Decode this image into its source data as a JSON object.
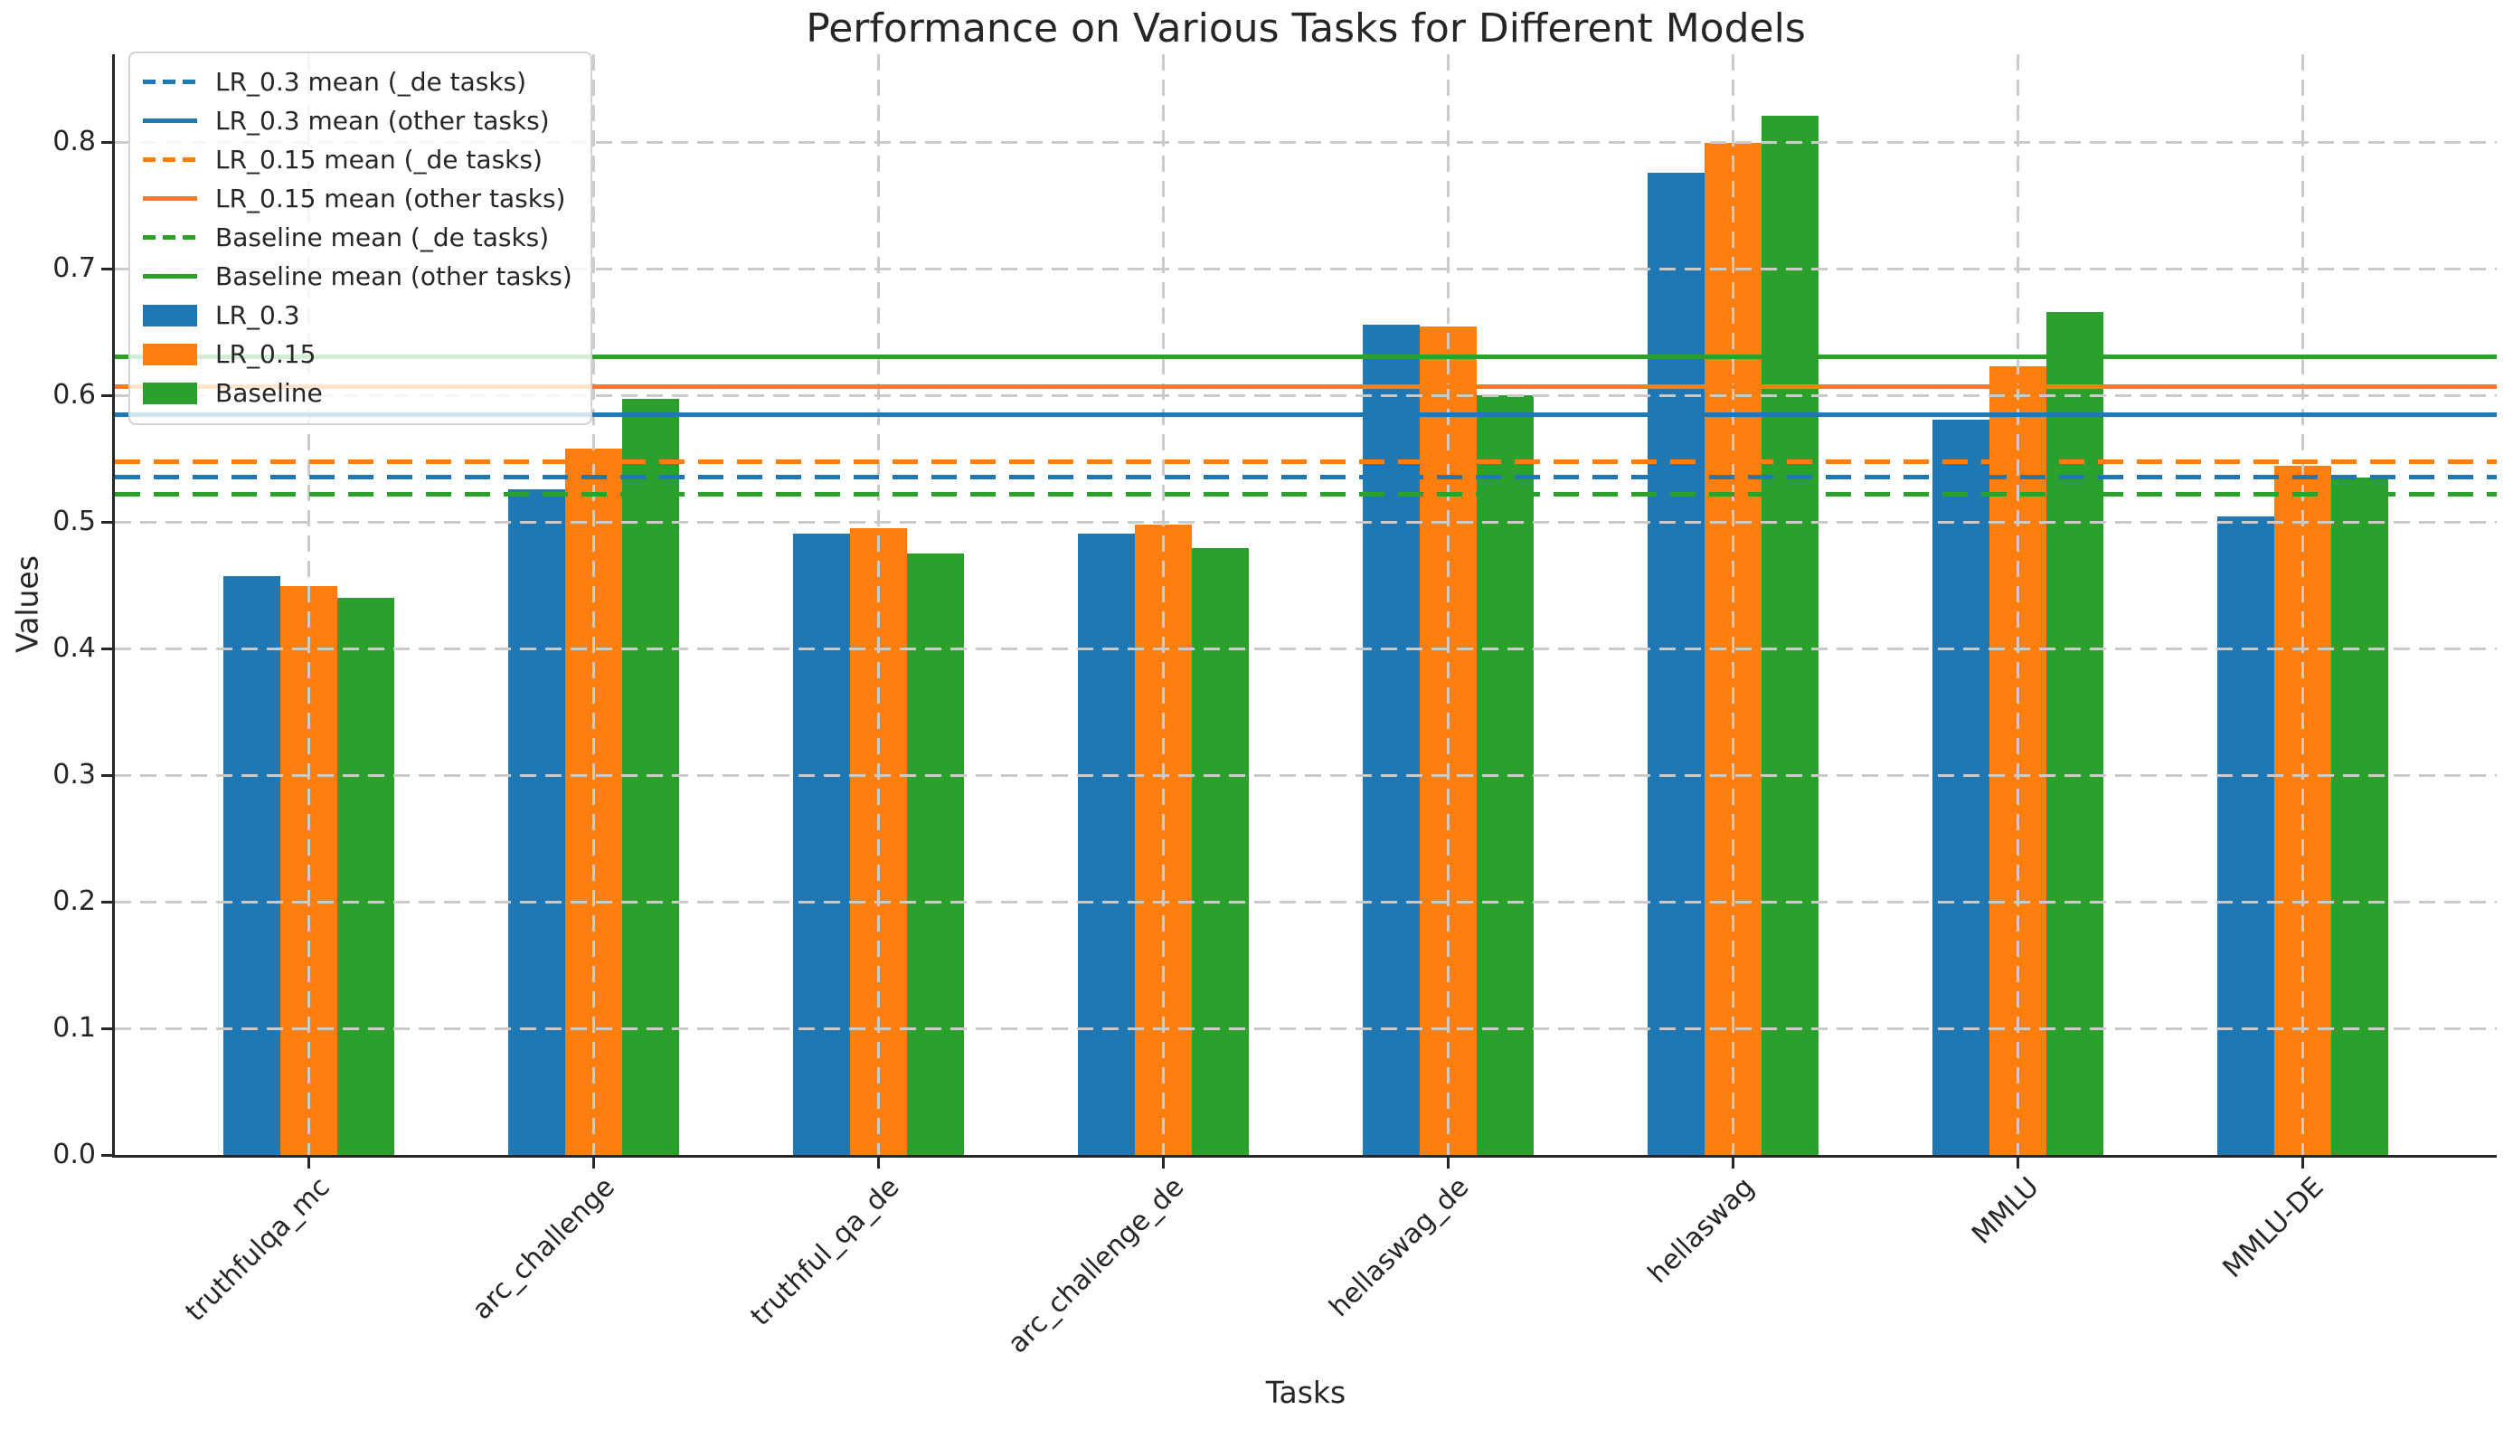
{
  "title": "Performance on Various Tasks for Different Models",
  "chart_data": {
    "type": "bar",
    "title": "Performance on Various Tasks for Different Models",
    "xlabel": "Tasks",
    "ylabel": "Values",
    "grid": true,
    "legend_position": "upper left",
    "ylim": [
      0,
      0.869
    ],
    "ytick_labels": [
      "0.0",
      "0.1",
      "0.2",
      "0.3",
      "0.4",
      "0.5",
      "0.6",
      "0.7",
      "0.8"
    ],
    "ytick_values": [
      0,
      0.1,
      0.2,
      0.3,
      0.4,
      0.5,
      0.6,
      0.7,
      0.8
    ],
    "categories": [
      "truthfulqa_mc",
      "arc_challenge",
      "truthful_qa_de",
      "arc_challenge_de",
      "hellaswag_de",
      "hellaswag",
      "MMLU",
      "MMLU-DE"
    ],
    "series": [
      {
        "name": "LR_0.3",
        "color": "#1f77b4",
        "values": [
          0.457,
          0.526,
          0.491,
          0.491,
          0.656,
          0.776,
          0.581,
          0.504
        ]
      },
      {
        "name": "LR_0.15",
        "color": "#ff7f0e",
        "values": [
          0.449,
          0.558,
          0.495,
          0.498,
          0.654,
          0.799,
          0.623,
          0.544
        ]
      },
      {
        "name": "Baseline",
        "color": "#2ca02c",
        "values": [
          0.44,
          0.597,
          0.475,
          0.479,
          0.6,
          0.821,
          0.666,
          0.535
        ]
      }
    ],
    "mean_lines": [
      {
        "label": "LR_0.3 mean (_de tasks)",
        "color": "#1f77b4",
        "style": "dashed",
        "value": 0.5355
      },
      {
        "label": "LR_0.3 mean (other tasks)",
        "color": "#1f77b4",
        "style": "solid",
        "value": 0.585
      },
      {
        "label": "LR_0.15 mean (_de tasks)",
        "color": "#ff7f0e",
        "style": "dashed",
        "value": 0.5478
      },
      {
        "label": "LR_0.15 mean (other tasks)",
        "color": "#ff7f0e",
        "style": "solid",
        "value": 0.6073
      },
      {
        "label": "Baseline mean (_de tasks)",
        "color": "#2ca02c",
        "style": "dashed",
        "value": 0.5223
      },
      {
        "label": "Baseline mean (other tasks)",
        "color": "#2ca02c",
        "style": "solid",
        "value": 0.631
      }
    ]
  },
  "legend": {
    "entries": [
      {
        "label": "LR_0.3 mean (_de tasks)",
        "color": "#1f77b4",
        "kind": "dashed-line"
      },
      {
        "label": "LR_0.3 mean (other tasks)",
        "color": "#1f77b4",
        "kind": "solid-line"
      },
      {
        "label": "LR_0.15 mean (_de tasks)",
        "color": "#ff7f0e",
        "kind": "dashed-line"
      },
      {
        "label": "LR_0.15 mean (other tasks)",
        "color": "#ff7f0e",
        "kind": "solid-line"
      },
      {
        "label": "Baseline mean (_de tasks)",
        "color": "#2ca02c",
        "kind": "dashed-line"
      },
      {
        "label": "Baseline mean (other tasks)",
        "color": "#2ca02c",
        "kind": "solid-line"
      },
      {
        "label": "LR_0.3",
        "color": "#1f77b4",
        "kind": "patch"
      },
      {
        "label": "LR_0.15",
        "color": "#ff7f0e",
        "kind": "patch"
      },
      {
        "label": "Baseline",
        "color": "#2ca02c",
        "kind": "patch"
      }
    ]
  }
}
